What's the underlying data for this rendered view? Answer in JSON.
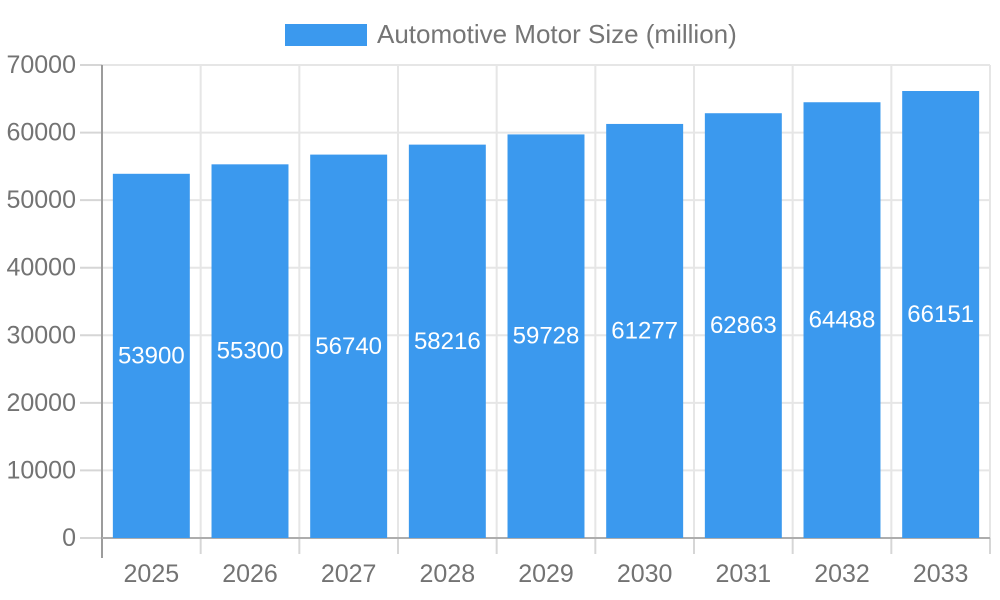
{
  "legend": {
    "label": "Automotive Motor Size (million)"
  },
  "colors": {
    "bar": "#3B99EE",
    "grid": "#E6E6E6",
    "tick": "#D6D6D6",
    "axis_line": "#9C9C9C",
    "baseline": "#ADADAD",
    "axis_text": "#737373",
    "bar_label": "#FFFFFF"
  },
  "chart_data": {
    "type": "bar",
    "title": "",
    "series_name": "Automotive Motor Size (million)",
    "categories": [
      "2025",
      "2026",
      "2027",
      "2028",
      "2029",
      "2030",
      "2031",
      "2032",
      "2033"
    ],
    "values": [
      53900,
      55300,
      56740,
      58216,
      59728,
      61277,
      62863,
      64488,
      66151
    ],
    "xlabel": "",
    "ylabel": "",
    "ylim": [
      0,
      70000
    ],
    "yticks": [
      0,
      10000,
      20000,
      30000,
      40000,
      50000,
      60000,
      70000
    ],
    "grid": true,
    "legend_position": "top",
    "value_labels": "inside-middle"
  }
}
